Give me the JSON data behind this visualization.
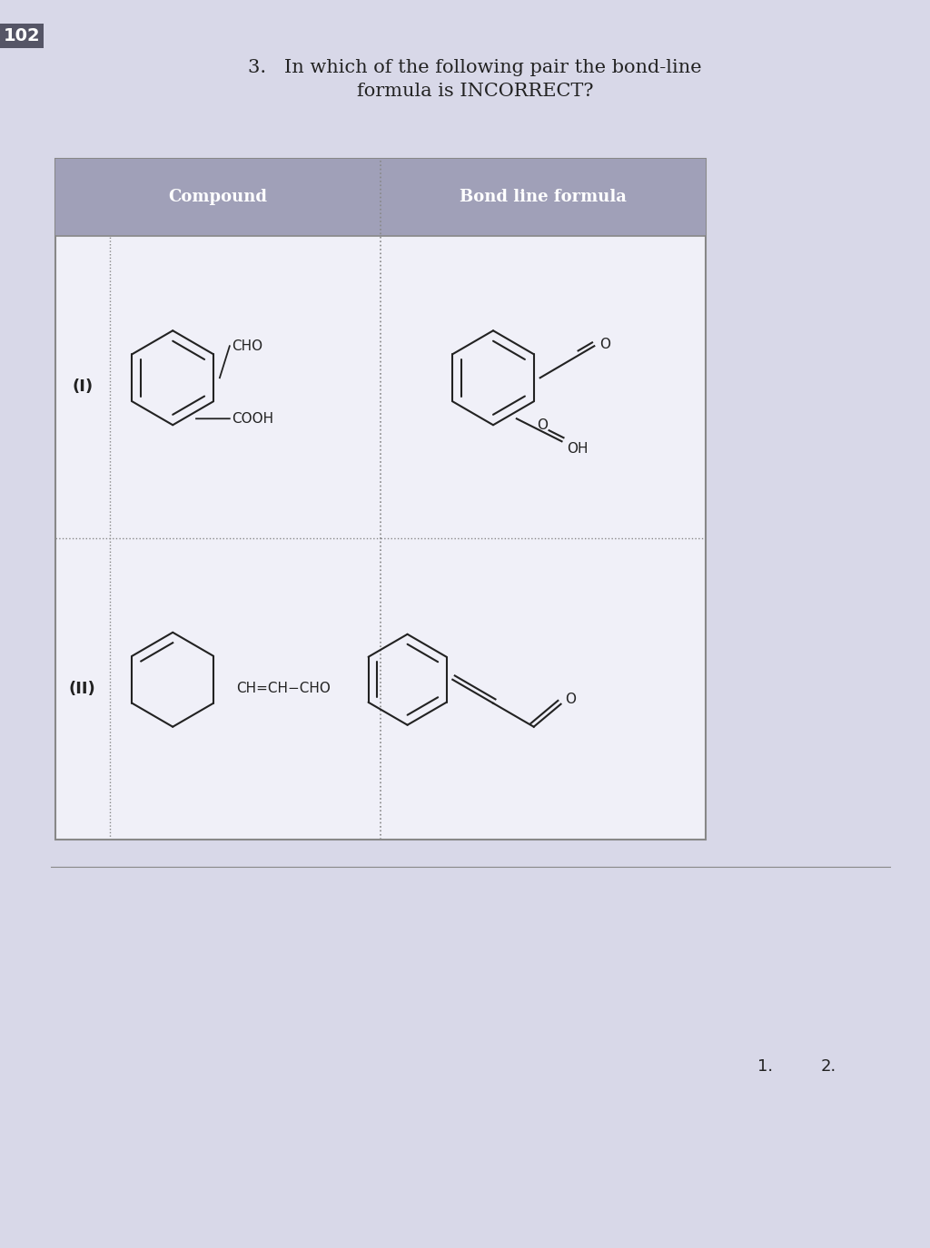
{
  "title": "3.   In which of the following pair the bond-line\nformula is INCORRECT?",
  "title_fontsize": 15,
  "bg_color": "#d8d8e8",
  "table_bg": "#e8e8f0",
  "header_bg": "#a0a0b8",
  "cell_bg": "#f0f0f8",
  "border_color": "#888888",
  "text_color": "#222222",
  "row_labels": [
    "(I)",
    "(II)"
  ],
  "col_labels": [
    "Compound",
    "Bond line formula"
  ],
  "page_number": "102",
  "footnote_numbers": [
    "1.",
    "2."
  ]
}
